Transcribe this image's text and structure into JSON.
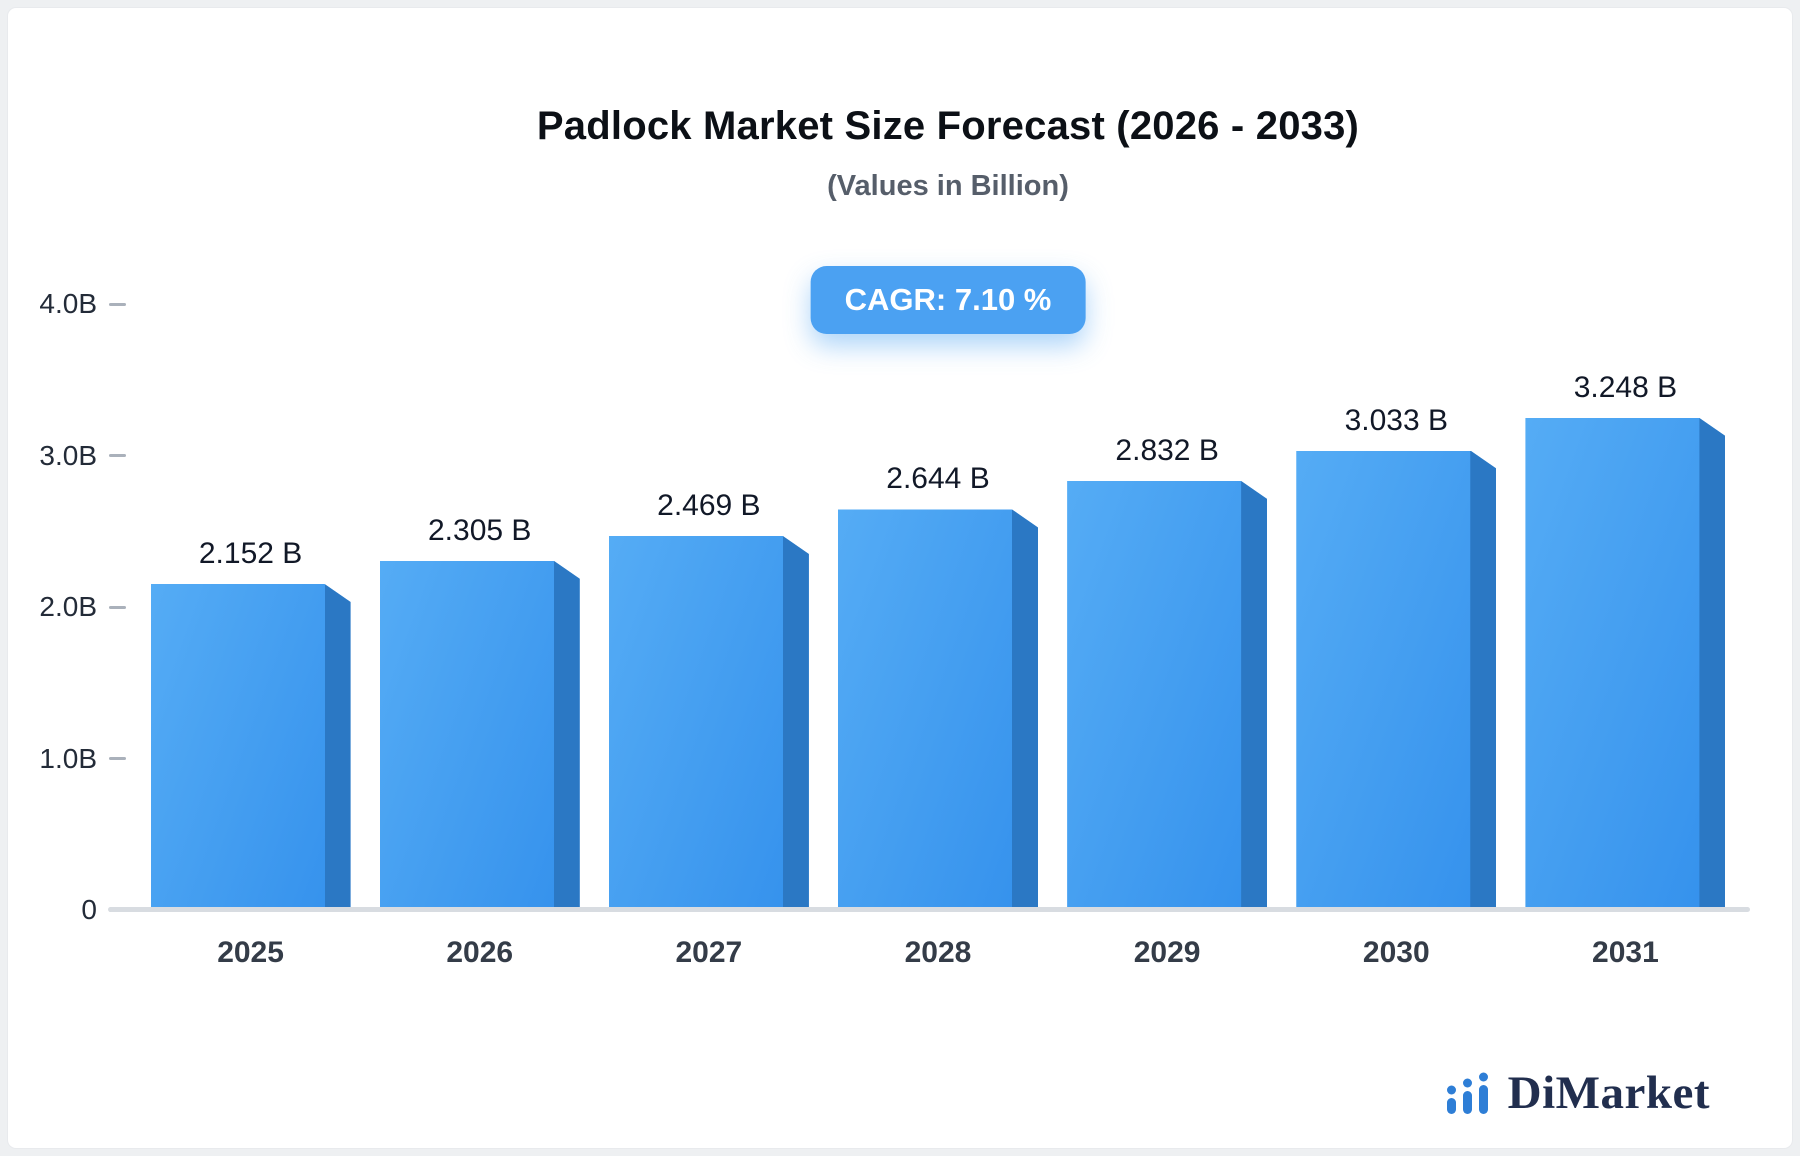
{
  "header": {
    "title": "Padlock Market Size Forecast (2026 - 2033)",
    "subtitle": "(Values in Billion)"
  },
  "badge": {
    "label": "CAGR: 7.10 %",
    "color": "#4BA1F2"
  },
  "chart_data": {
    "type": "bar",
    "title": "Padlock Market Size Forecast (2026 - 2033)",
    "subtitle": "(Values in Billion)",
    "categories": [
      "2025",
      "2026",
      "2027",
      "2028",
      "2029",
      "2030",
      "2031"
    ],
    "values": [
      2.152,
      2.305,
      2.469,
      2.644,
      2.832,
      3.033,
      3.248
    ],
    "value_labels": [
      "2.152 B",
      "2.305 B",
      "2.469 B",
      "2.644 B",
      "2.832 B",
      "3.033 B",
      "3.248 B"
    ],
    "ylim": [
      0,
      4.0
    ],
    "yticks": [
      {
        "value": 4.0,
        "label": "4.0B"
      },
      {
        "value": 3.0,
        "label": "3.0B"
      },
      {
        "value": 2.0,
        "label": "2.0B"
      },
      {
        "value": 1.0,
        "label": "1.0B"
      },
      {
        "value": 0,
        "label": "0"
      }
    ],
    "grid": false,
    "legend": false,
    "bar_color_top": "#55ACF5",
    "bar_color_bottom": "#3390EC",
    "bar_side_color": "#2B78C4",
    "axis_line_color": "#d8dce1"
  },
  "logo": {
    "text": "DiMarket",
    "icon": "bar-chart-icon",
    "icon_color": "#2E7ED6",
    "text_color": "#212e4e"
  }
}
